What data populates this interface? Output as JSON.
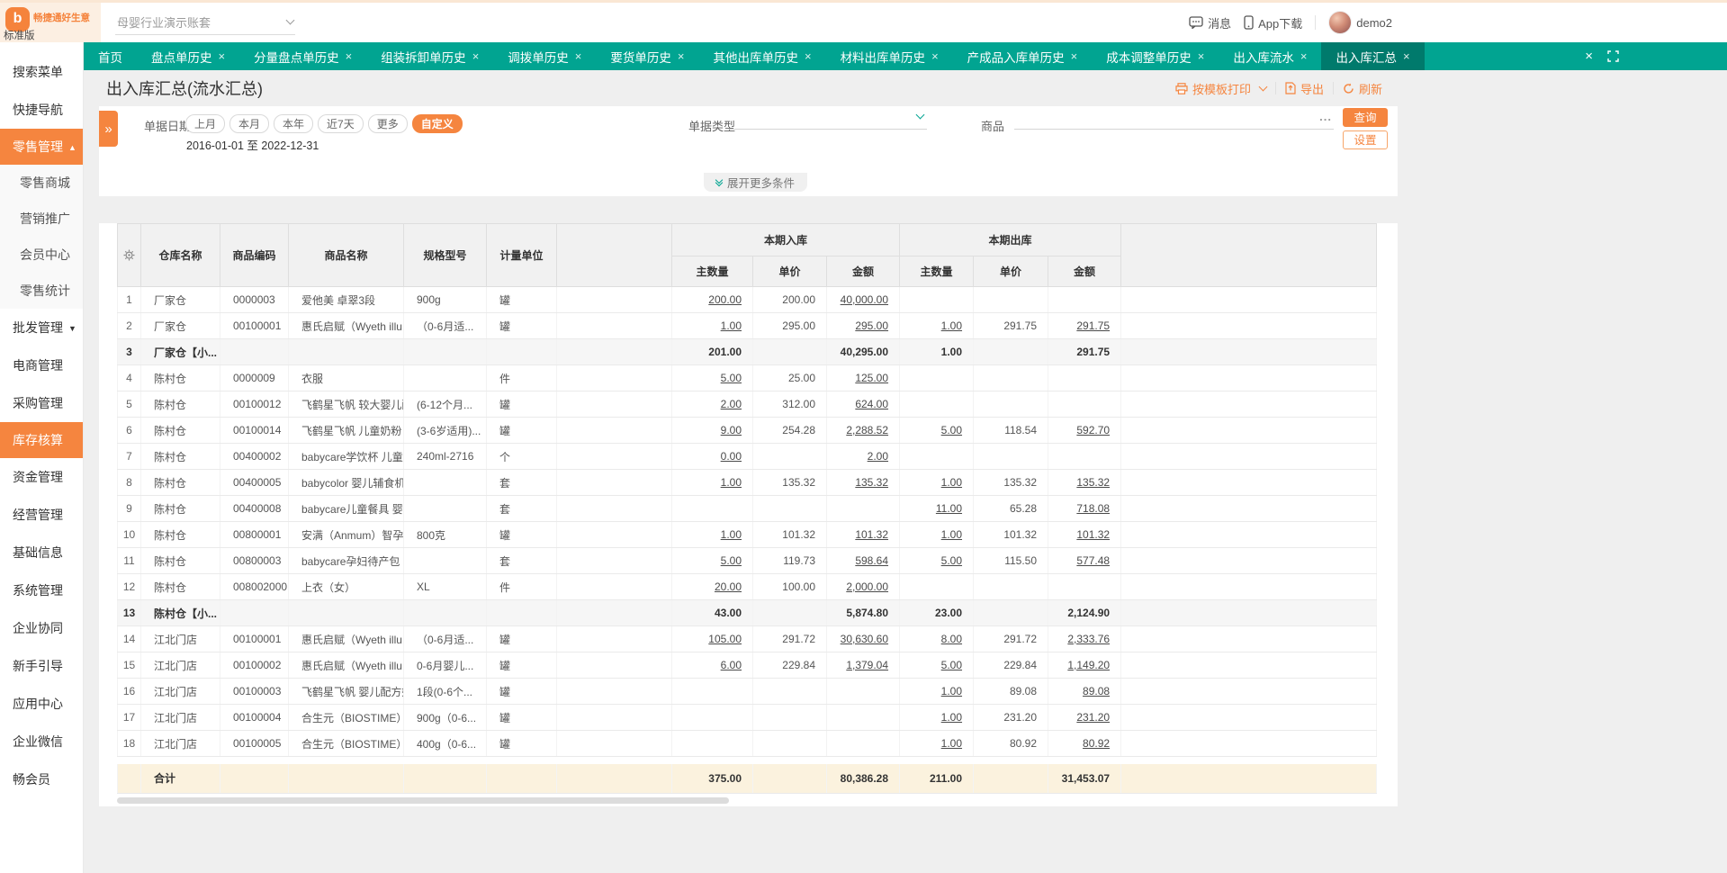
{
  "colors": {
    "accent_orange": "#F5853F",
    "teal": "#01A491",
    "active_tab_teal": "#007A6C",
    "total_row_bg": "#FBF2DE"
  },
  "topbar": {
    "logo": {
      "mark": "b",
      "brand": "畅捷通好生意",
      "edition": "标准版"
    },
    "account_select": {
      "value": "母婴行业演示账套"
    },
    "messages_label": "消息",
    "app_download_label": "App下载",
    "username": "demo2"
  },
  "tabbar": {
    "tabs": [
      {
        "label": "首页",
        "closable": false,
        "active": false
      },
      {
        "label": "盘点单历史",
        "closable": true,
        "active": false
      },
      {
        "label": "分量盘点单历史",
        "closable": true,
        "active": false
      },
      {
        "label": "组装拆卸单历史",
        "closable": true,
        "active": false
      },
      {
        "label": "调拨单历史",
        "closable": true,
        "active": false
      },
      {
        "label": "要货单历史",
        "closable": true,
        "active": false
      },
      {
        "label": "其他出库单历史",
        "closable": true,
        "active": false
      },
      {
        "label": "材料出库单历史",
        "closable": true,
        "active": false
      },
      {
        "label": "产成品入库单历史",
        "closable": true,
        "active": false
      },
      {
        "label": "成本调整单历史",
        "closable": true,
        "active": false
      },
      {
        "label": "出入库流水",
        "closable": true,
        "active": false
      },
      {
        "label": "出入库汇总",
        "closable": true,
        "active": true
      }
    ]
  },
  "sidebar": {
    "items": [
      {
        "label": "搜索菜单",
        "type": "top"
      },
      {
        "label": "快捷导航",
        "type": "top"
      },
      {
        "label": "零售管理",
        "type": "top",
        "active": true,
        "arrow": "up"
      },
      {
        "label": "零售商城",
        "type": "sub"
      },
      {
        "label": "营销推广",
        "type": "sub"
      },
      {
        "label": "会员中心",
        "type": "sub"
      },
      {
        "label": "零售统计",
        "type": "sub"
      },
      {
        "label": "批发管理",
        "type": "top",
        "arrow": "down"
      },
      {
        "label": "电商管理",
        "type": "top"
      },
      {
        "label": "采购管理",
        "type": "top"
      },
      {
        "label": "库存核算",
        "type": "top",
        "active": true
      },
      {
        "label": "资金管理",
        "type": "top"
      },
      {
        "label": "经营管理",
        "type": "top"
      },
      {
        "label": "基础信息",
        "type": "top"
      },
      {
        "label": "系统管理",
        "type": "top"
      },
      {
        "label": "企业协同",
        "type": "top"
      },
      {
        "label": "新手引导",
        "type": "top"
      },
      {
        "label": "应用中心",
        "type": "top"
      },
      {
        "label": "企业微信",
        "type": "top"
      },
      {
        "label": "畅会员",
        "type": "top"
      }
    ]
  },
  "page": {
    "title": "出入库汇总(流水汇总)",
    "actions": {
      "print": "按模板打印",
      "export": "导出",
      "refresh": "刷新"
    }
  },
  "filters": {
    "date_label": "单据日期",
    "date_presets": [
      "上月",
      "本月",
      "本年",
      "近7天",
      "更多"
    ],
    "date_custom": "自定义",
    "date_range": "2016-01-01 至 2022-12-31",
    "doc_type_label": "单据类型",
    "product_label": "商品",
    "more_button": "...",
    "search_button": "查询",
    "settings_button": "设置",
    "expand_more": "展开更多条件"
  },
  "table": {
    "columns": {
      "warehouse": "仓库名称",
      "code": "商品编码",
      "name": "商品名称",
      "spec": "规格型号",
      "unit": "计量单位",
      "qty": "主数量",
      "price": "单价",
      "amount": "金额"
    },
    "group_headers": {
      "inbound": "本期入库",
      "outbound": "本期出库"
    },
    "total_label": "合计",
    "rows": [
      {
        "type": "data",
        "num": "1",
        "warehouse": "厂家仓",
        "code": "0000003",
        "name": "爱他美 卓翠3段",
        "spec": "900g",
        "unit": "罐",
        "in": [
          "200.00",
          "200.00",
          "40,000.00"
        ],
        "out": [
          "",
          "",
          ""
        ]
      },
      {
        "type": "data",
        "num": "2",
        "warehouse": "厂家仓",
        "code": "00100001",
        "name": "惠氏启赋（Wyeth illu...",
        "spec": "（0-6月适...",
        "unit": "罐",
        "in": [
          "1.00",
          "295.00",
          "295.00"
        ],
        "out": [
          "1.00",
          "291.75",
          "291.75"
        ]
      },
      {
        "type": "subtotal",
        "num": "3",
        "warehouse": "厂家仓【小...",
        "in": [
          "201.00",
          "",
          "40,295.00"
        ],
        "out": [
          "1.00",
          "",
          "291.75"
        ]
      },
      {
        "type": "data",
        "num": "4",
        "warehouse": "陈村仓",
        "code": "0000009",
        "name": "衣服",
        "spec": "",
        "unit": "件",
        "in": [
          "5.00",
          "25.00",
          "125.00"
        ],
        "out": [
          "",
          "",
          ""
        ]
      },
      {
        "type": "data",
        "num": "5",
        "warehouse": "陈村仓",
        "code": "00100012",
        "name": "飞鹤星飞帆 较大婴儿配...",
        "spec": "(6-12个月...",
        "unit": "罐",
        "in": [
          "2.00",
          "312.00",
          "624.00"
        ],
        "out": [
          "",
          "",
          ""
        ]
      },
      {
        "type": "data",
        "num": "6",
        "warehouse": "陈村仓",
        "code": "00100014",
        "name": "飞鹤星飞帆 儿童奶粉 4...",
        "spec": "(3-6岁适用)...",
        "unit": "罐",
        "in": [
          "9.00",
          "254.28",
          "2,288.52"
        ],
        "out": [
          "5.00",
          "118.54",
          "592.70"
        ]
      },
      {
        "type": "data",
        "num": "7",
        "warehouse": "陈村仓",
        "code": "00400002",
        "name": "babycare学饮杯 儿童...",
        "spec": "240ml-2716",
        "unit": "个",
        "in": [
          "0.00",
          "",
          "2.00"
        ],
        "out": [
          "",
          "",
          ""
        ]
      },
      {
        "type": "data",
        "num": "8",
        "warehouse": "陈村仓",
        "code": "00400005",
        "name": "babycolor 婴儿辅食机 ...",
        "spec": "",
        "unit": "套",
        "in": [
          "1.00",
          "135.32",
          "135.32"
        ],
        "out": [
          "1.00",
          "135.32",
          "135.32"
        ]
      },
      {
        "type": "data",
        "num": "9",
        "warehouse": "陈村仓",
        "code": "00400008",
        "name": "babycare儿童餐具 婴...",
        "spec": "",
        "unit": "套",
        "in": [
          "",
          "",
          ""
        ],
        "out": [
          "11.00",
          "65.28",
          "718.08"
        ]
      },
      {
        "type": "data",
        "num": "10",
        "warehouse": "陈村仓",
        "code": "00800001",
        "name": "安满（Anmum）智孕...",
        "spec": "800克",
        "unit": "罐",
        "in": [
          "1.00",
          "101.32",
          "101.32"
        ],
        "out": [
          "1.00",
          "101.32",
          "101.32"
        ]
      },
      {
        "type": "data",
        "num": "11",
        "warehouse": "陈村仓",
        "code": "00800003",
        "name": "babycare孕妇待产包 ...",
        "spec": "",
        "unit": "套",
        "in": [
          "5.00",
          "119.73",
          "598.64"
        ],
        "out": [
          "5.00",
          "115.50",
          "577.48"
        ]
      },
      {
        "type": "data",
        "num": "12",
        "warehouse": "陈村仓",
        "code": "008002000...",
        "name": "上衣（女）",
        "spec": "XL",
        "unit": "件",
        "in": [
          "20.00",
          "100.00",
          "2,000.00"
        ],
        "out": [
          "",
          "",
          ""
        ]
      },
      {
        "type": "subtotal",
        "num": "13",
        "warehouse": "陈村仓【小...",
        "in": [
          "43.00",
          "",
          "5,874.80"
        ],
        "out": [
          "23.00",
          "",
          "2,124.90"
        ]
      },
      {
        "type": "data",
        "num": "14",
        "warehouse": "江北门店",
        "code": "00100001",
        "name": "惠氏启赋（Wyeth illu...",
        "spec": "（0-6月适...",
        "unit": "罐",
        "in": [
          "105.00",
          "291.72",
          "30,630.60"
        ],
        "out": [
          "8.00",
          "291.72",
          "2,333.76"
        ]
      },
      {
        "type": "data",
        "num": "15",
        "warehouse": "江北门店",
        "code": "00100002",
        "name": "惠氏启赋（Wyeth illu...",
        "spec": "0-6月婴儿...",
        "unit": "罐",
        "in": [
          "6.00",
          "229.84",
          "1,379.04"
        ],
        "out": [
          "5.00",
          "229.84",
          "1,149.20"
        ]
      },
      {
        "type": "data",
        "num": "16",
        "warehouse": "江北门店",
        "code": "00100003",
        "name": "飞鹤星飞帆 婴儿配方奶...",
        "spec": "1段(0-6个...",
        "unit": "罐",
        "in": [
          "",
          "",
          ""
        ],
        "out": [
          "1.00",
          "89.08",
          "89.08"
        ]
      },
      {
        "type": "data",
        "num": "17",
        "warehouse": "江北门店",
        "code": "00100004",
        "name": "合生元（BIOSTIME）...",
        "spec": "900g（0-6...",
        "unit": "罐",
        "in": [
          "",
          "",
          ""
        ],
        "out": [
          "1.00",
          "231.20",
          "231.20"
        ]
      },
      {
        "type": "data",
        "num": "18",
        "warehouse": "江北门店",
        "code": "00100005",
        "name": "合生元（BIOSTIME）...",
        "spec": "400g（0-6...",
        "unit": "罐",
        "in": [
          "",
          "",
          ""
        ],
        "out": [
          "1.00",
          "80.92",
          "80.92"
        ]
      },
      {
        "type": "total",
        "num": "",
        "warehouse": "合计",
        "in": [
          "375.00",
          "",
          "80,386.28"
        ],
        "out": [
          "211.00",
          "",
          "31,453.07"
        ]
      }
    ]
  }
}
